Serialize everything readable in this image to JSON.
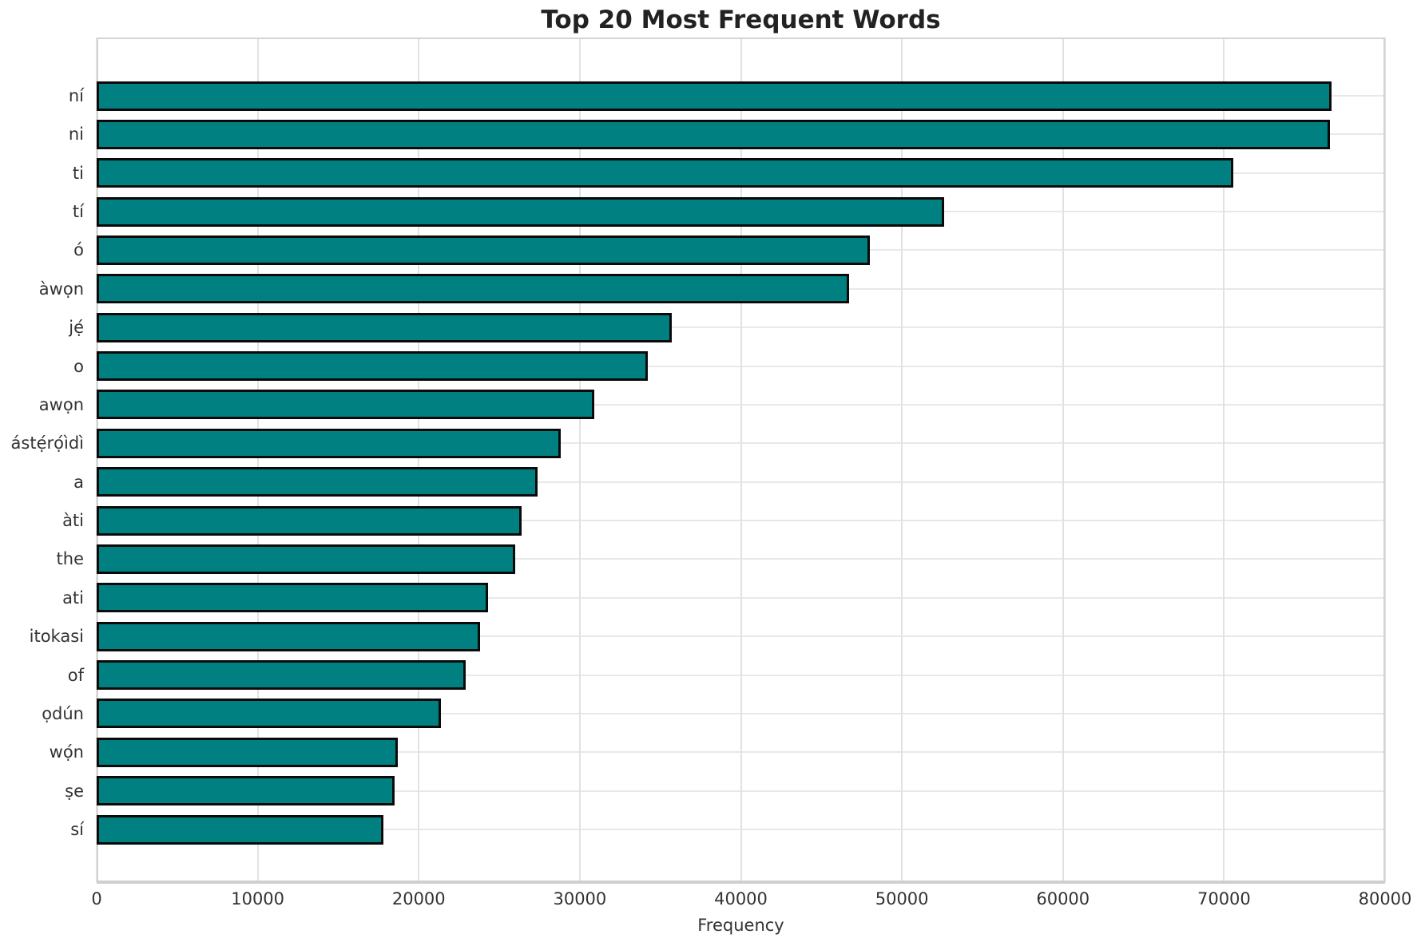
{
  "chart_data": {
    "type": "bar",
    "orientation": "horizontal",
    "title": "Top 20 Most Frequent Words",
    "xlabel": "Frequency",
    "ylabel": "",
    "categories": [
      "ní",
      "ni",
      "ti",
      "tí",
      "ó",
      "àwọn",
      "jẹ́",
      "o",
      "awọn",
      "ástẹ́rọ́ìdì",
      "a",
      "àti",
      "the",
      "ati",
      "itokasi",
      "of",
      "ọdún",
      "wọ́n",
      "ṣe",
      "sí"
    ],
    "values": [
      76700,
      76600,
      70600,
      52600,
      48000,
      46700,
      35700,
      34200,
      30900,
      28800,
      27400,
      26400,
      26000,
      24300,
      23800,
      22900,
      21400,
      18700,
      18500,
      17800
    ],
    "xlim": [
      0,
      80000
    ],
    "xticks": [
      0,
      10000,
      20000,
      30000,
      40000,
      50000,
      60000,
      70000,
      80000
    ],
    "grid": true,
    "legend": "none",
    "bar_color": "#008080",
    "bar_edge_color": "#0a0a0a",
    "background_color": "#ffffff"
  }
}
